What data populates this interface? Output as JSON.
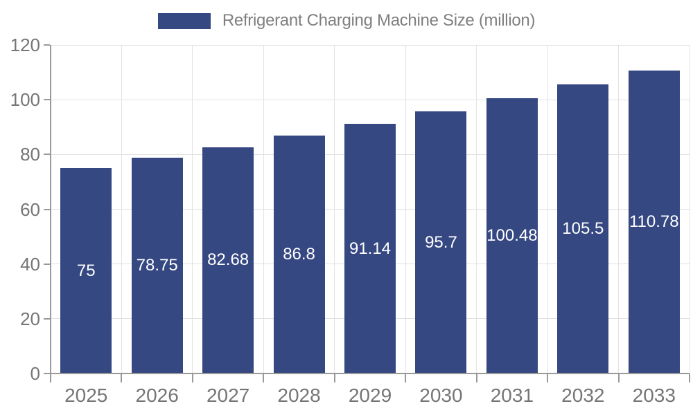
{
  "legend": {
    "position": "top-center"
  },
  "style": {
    "bar_color": "#364882",
    "value_label_color": "#ffffff",
    "grid_color": "#e0e0e0",
    "axis_line_color": "#999999",
    "axis_label_color": "#757575",
    "legend_text_color": "#7f7f7f",
    "background": "#ffffff"
  },
  "chart_data": {
    "type": "bar",
    "title": "",
    "xlabel": "",
    "ylabel": "",
    "categories": [
      "2025",
      "2026",
      "2027",
      "2028",
      "2029",
      "2030",
      "2031",
      "2032",
      "2033"
    ],
    "series": [
      {
        "name": "Refrigerant Charging Machine Size (million)",
        "values": [
          75,
          78.75,
          82.68,
          86.8,
          91.14,
          95.7,
          100.48,
          105.5,
          110.78
        ],
        "color": "#364882"
      }
    ],
    "value_labels": [
      "75",
      "78.75",
      "82.68",
      "86.8",
      "91.14",
      "95.7",
      "100.48",
      "105.5",
      "110.78"
    ],
    "ylim": [
      0,
      120
    ],
    "y_ticks": [
      0,
      20,
      40,
      60,
      80,
      100,
      120
    ],
    "grid": true,
    "value_label_position": "inside-center",
    "legend_position": "top-center"
  }
}
